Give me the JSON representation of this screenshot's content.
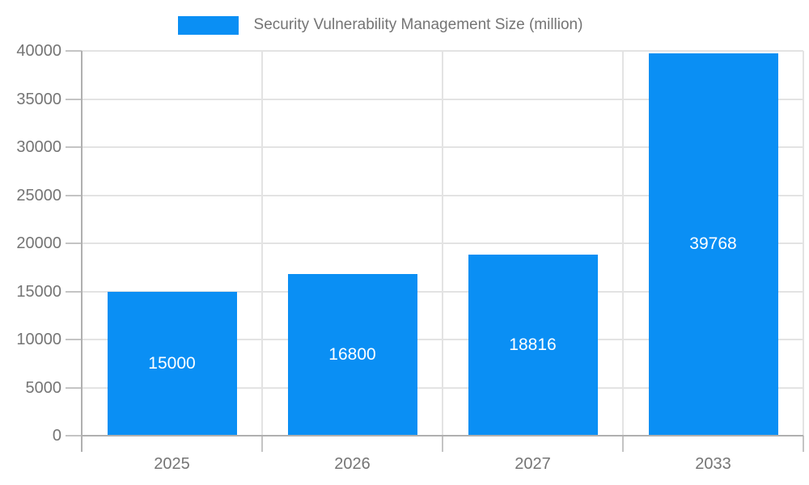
{
  "legend": {
    "swatch_icon": "legend-color-swatch",
    "position": "top"
  },
  "chart_data": {
    "type": "bar",
    "title": "Security Vulnerability Management Size (million)",
    "categories": [
      "2025",
      "2026",
      "2027",
      "2033"
    ],
    "values": [
      15000,
      16800,
      18816,
      39768
    ],
    "xlabel": "",
    "ylabel": "",
    "ylim": [
      0,
      40000
    ],
    "ytick_step": 5000,
    "ytick_labels": [
      "0",
      "5000",
      "10000",
      "15000",
      "20000",
      "25000",
      "30000",
      "35000",
      "40000"
    ],
    "grid": true,
    "legend_position": "top",
    "bar_labels_inside": true
  },
  "colors": {
    "bar": "#0a8ff4",
    "bar_label": "#ffffff",
    "grid": "#e3e3e3",
    "axis": "#b0b0b0",
    "tick": "#c4c4c4",
    "text": "#757575",
    "title_text": "#747474",
    "background": "#ffffff"
  }
}
